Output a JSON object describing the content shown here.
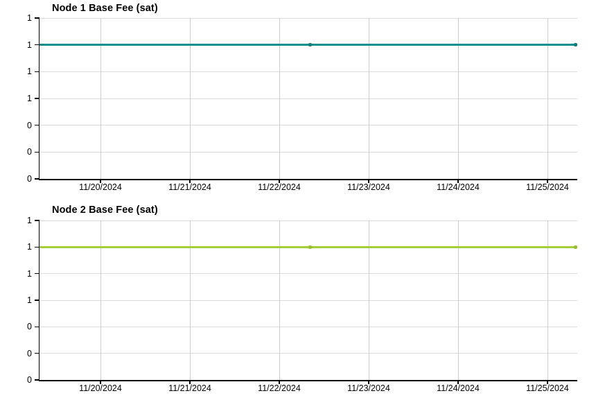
{
  "palette": {
    "background": "#FFFFFF",
    "axis": "#000000",
    "gridline_h": "#DBDBDB",
    "gridline_v": "#CCCCCC",
    "text": "#000000"
  },
  "chart_data": [
    {
      "type": "line",
      "title": "Node 1 Base Fee (sat)",
      "xlabel": "",
      "ylabel": "",
      "x_tick_labels": [
        "11/20/2024",
        "11/21/2024",
        "11/22/2024",
        "11/23/2024",
        "11/24/2024",
        "11/25/2024"
      ],
      "y_tick_labels": [
        "1",
        "1",
        "1",
        "1",
        "0",
        "0",
        "0"
      ],
      "y_tick_values": [
        1.2,
        1.0,
        0.8,
        0.6,
        0.4,
        0.2,
        0
      ],
      "ylim": [
        0,
        1.2
      ],
      "grid": true,
      "legend": "none",
      "series": [
        {
          "name": "Node 1 base fee",
          "value": 1,
          "values": [
            1,
            1,
            1,
            1,
            1,
            1
          ],
          "color": "#11908F",
          "marker_color": "#0C7F7D"
        }
      ]
    },
    {
      "type": "line",
      "title": "Node 2 Base Fee (sat)",
      "xlabel": "",
      "ylabel": "",
      "x_tick_labels": [
        "11/20/2024",
        "11/21/2024",
        "11/22/2024",
        "11/23/2024",
        "11/24/2024",
        "11/25/2024"
      ],
      "y_tick_labels": [
        "1",
        "1",
        "1",
        "1",
        "0",
        "0",
        "0"
      ],
      "y_tick_values": [
        1.2,
        1.0,
        0.8,
        0.6,
        0.4,
        0.2,
        0
      ],
      "ylim": [
        0,
        1.2
      ],
      "grid": true,
      "legend": "none",
      "series": [
        {
          "name": "Node 2 base fee",
          "value": 1,
          "values": [
            1,
            1,
            1,
            1,
            1,
            1
          ],
          "color": "#A4CE37",
          "marker_color": "#96C12D"
        }
      ]
    }
  ]
}
